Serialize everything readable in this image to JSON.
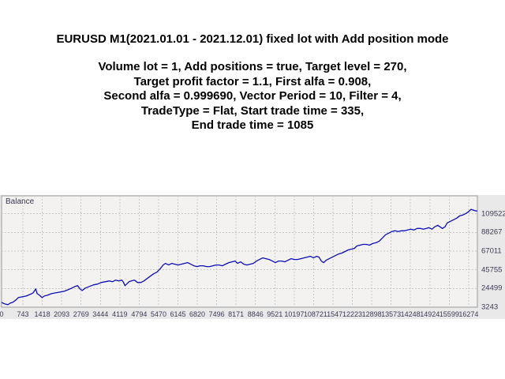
{
  "caption": {
    "title": "EURUSD M1(2021.01.01 - 2021.12.01) fixed lot with Add position mode",
    "param_lines": [
      "Volume lot = 1, Add positions = true, Target level = 270,",
      "Target profit factor = 1.1, First alfa = 0.908,",
      "Second alfa = 0.999690, Vector Period = 10, Filter = 4,",
      "TradeType = Flat, Start trade time = 335,",
      "End trade time = 1085"
    ]
  },
  "chart_data": {
    "type": "line",
    "title": "Balance",
    "legend_position": "top-left",
    "grid": true,
    "xlabel": "",
    "ylabel": "",
    "x_ticks": [
      0,
      743,
      1418,
      2093,
      2769,
      3444,
      4119,
      4794,
      5470,
      6145,
      6820,
      7496,
      8171,
      8846,
      9521,
      10197,
      10872,
      11547,
      12223,
      12898,
      13573,
      14248,
      14924,
      15599,
      16274
    ],
    "y_ticks": [
      109522,
      88267,
      67011,
      45755,
      24499,
      3243
    ],
    "x_range": [
      0,
      16580
    ],
    "y_range": [
      3243,
      129900
    ],
    "line_color": "#0d0db8",
    "plot_bg": "#f3f2f0",
    "widget_bg": "#e9e9e9",
    "grid_color": "#c8c8c8",
    "border_color": "#9b9b9b",
    "series": [
      {
        "name": "Balance",
        "points": [
          [
            0,
            8700
          ],
          [
            110,
            6900
          ],
          [
            220,
            6000
          ],
          [
            300,
            7800
          ],
          [
            390,
            8700
          ],
          [
            500,
            11400
          ],
          [
            580,
            14100
          ],
          [
            720,
            15000
          ],
          [
            860,
            15900
          ],
          [
            990,
            17700
          ],
          [
            1100,
            19500
          ],
          [
            1190,
            24000
          ],
          [
            1240,
            18600
          ],
          [
            1320,
            16800
          ],
          [
            1410,
            14100
          ],
          [
            1490,
            15900
          ],
          [
            1600,
            16800
          ],
          [
            1740,
            18600
          ],
          [
            1880,
            19500
          ],
          [
            2040,
            20400
          ],
          [
            2180,
            21300
          ],
          [
            2320,
            23100
          ],
          [
            2450,
            25000
          ],
          [
            2560,
            26800
          ],
          [
            2650,
            27700
          ],
          [
            2730,
            24000
          ],
          [
            2810,
            22200
          ],
          [
            2920,
            25000
          ],
          [
            3060,
            26800
          ],
          [
            3200,
            28600
          ],
          [
            3340,
            29500
          ],
          [
            3470,
            31300
          ],
          [
            3610,
            32200
          ],
          [
            3750,
            33100
          ],
          [
            3860,
            32200
          ],
          [
            3970,
            34000
          ],
          [
            4080,
            33100
          ],
          [
            4190,
            34000
          ],
          [
            4250,
            31300
          ],
          [
            4300,
            27700
          ],
          [
            4440,
            32200
          ],
          [
            4520,
            33100
          ],
          [
            4630,
            34000
          ],
          [
            4740,
            31300
          ],
          [
            4850,
            31300
          ],
          [
            4960,
            33100
          ],
          [
            5070,
            35800
          ],
          [
            5180,
            38500
          ],
          [
            5300,
            41200
          ],
          [
            5410,
            43000
          ],
          [
            5520,
            46700
          ],
          [
            5630,
            51200
          ],
          [
            5710,
            53000
          ],
          [
            5820,
            51200
          ],
          [
            5930,
            53000
          ],
          [
            6040,
            52100
          ],
          [
            6150,
            51200
          ],
          [
            6260,
            52100
          ],
          [
            6370,
            53000
          ],
          [
            6480,
            53900
          ],
          [
            6590,
            52100
          ],
          [
            6700,
            50300
          ],
          [
            6810,
            49400
          ],
          [
            6920,
            50300
          ],
          [
            7030,
            50300
          ],
          [
            7140,
            49400
          ],
          [
            7250,
            49400
          ],
          [
            7360,
            50300
          ],
          [
            7470,
            51200
          ],
          [
            7580,
            51200
          ],
          [
            7700,
            50300
          ],
          [
            7800,
            52100
          ],
          [
            7920,
            53900
          ],
          [
            8030,
            54800
          ],
          [
            8140,
            55700
          ],
          [
            8220,
            53000
          ],
          [
            8330,
            54800
          ],
          [
            8440,
            52100
          ],
          [
            8550,
            51200
          ],
          [
            8660,
            52100
          ],
          [
            8770,
            53000
          ],
          [
            8880,
            55700
          ],
          [
            8990,
            57500
          ],
          [
            9100,
            59300
          ],
          [
            9210,
            58400
          ],
          [
            9320,
            57500
          ],
          [
            9430,
            55700
          ],
          [
            9540,
            53900
          ],
          [
            9650,
            55700
          ],
          [
            9760,
            55700
          ],
          [
            9870,
            54800
          ],
          [
            9980,
            56600
          ],
          [
            10090,
            58400
          ],
          [
            10200,
            57500
          ],
          [
            10310,
            57500
          ],
          [
            10430,
            58400
          ],
          [
            10540,
            59300
          ],
          [
            10650,
            60200
          ],
          [
            10760,
            61100
          ],
          [
            10870,
            59300
          ],
          [
            10980,
            61100
          ],
          [
            11060,
            60200
          ],
          [
            11140,
            55700
          ],
          [
            11220,
            53900
          ],
          [
            11310,
            56600
          ],
          [
            11420,
            58400
          ],
          [
            11530,
            60200
          ],
          [
            11640,
            62000
          ],
          [
            11750,
            63800
          ],
          [
            11860,
            64800
          ],
          [
            11970,
            66600
          ],
          [
            12080,
            68400
          ],
          [
            12190,
            69300
          ],
          [
            12300,
            70200
          ],
          [
            12380,
            72900
          ],
          [
            12490,
            73800
          ],
          [
            12600,
            74700
          ],
          [
            12710,
            74700
          ],
          [
            12820,
            73800
          ],
          [
            12930,
            75600
          ],
          [
            13050,
            76500
          ],
          [
            13160,
            78300
          ],
          [
            13270,
            81900
          ],
          [
            13380,
            85600
          ],
          [
            13490,
            87400
          ],
          [
            13600,
            89200
          ],
          [
            13710,
            90100
          ],
          [
            13820,
            89200
          ],
          [
            13930,
            90100
          ],
          [
            14040,
            90100
          ],
          [
            14150,
            91000
          ],
          [
            14260,
            91900
          ],
          [
            14370,
            91000
          ],
          [
            14480,
            92800
          ],
          [
            14590,
            92800
          ],
          [
            14700,
            91900
          ],
          [
            14810,
            92800
          ],
          [
            14890,
            93700
          ],
          [
            15000,
            91900
          ],
          [
            15090,
            94600
          ],
          [
            15200,
            96400
          ],
          [
            15280,
            94600
          ],
          [
            15360,
            92800
          ],
          [
            15450,
            94600
          ],
          [
            15530,
            99100
          ],
          [
            15640,
            100900
          ],
          [
            15750,
            102700
          ],
          [
            15860,
            104500
          ],
          [
            15970,
            107300
          ],
          [
            16080,
            108200
          ],
          [
            16190,
            110000
          ],
          [
            16270,
            111800
          ],
          [
            16360,
            114500
          ],
          [
            16440,
            113600
          ],
          [
            16520,
            112700
          ],
          [
            16580,
            112700
          ]
        ]
      }
    ]
  }
}
